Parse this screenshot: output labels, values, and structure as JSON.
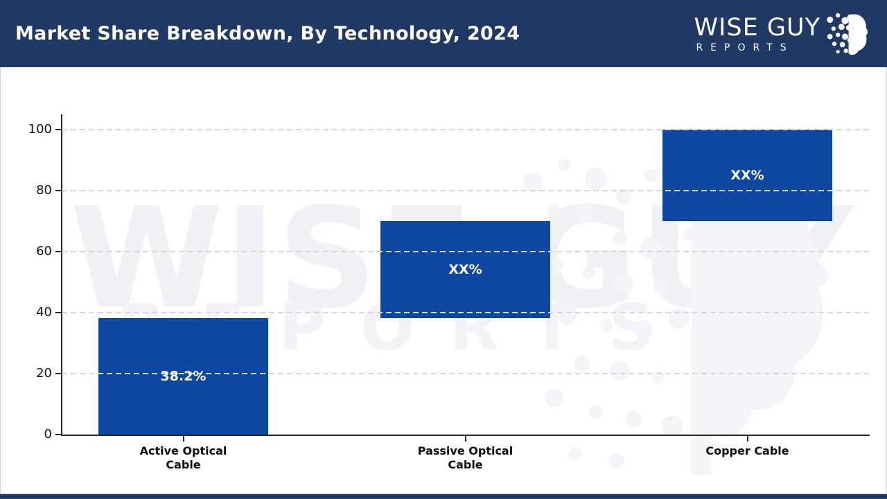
{
  "header": {
    "title": "Market Share Breakdown, By Technology, 2024",
    "logo": {
      "line1": "WISE GUY",
      "line2": "REPORTS"
    }
  },
  "watermark": {
    "line1": "WISE GUY",
    "line2": "REPORTS"
  },
  "colors": {
    "header_bg": "#1f3864",
    "footer_bg": "#1f3864",
    "bar": "#0d47a1",
    "bar_label": "#ffffff",
    "grid": "#d8d8d8",
    "axis": "#262626",
    "watermark": "#f2f4f7"
  },
  "chart_data": {
    "type": "bar",
    "subtype": "stacked-waterfall-segments",
    "title": "Market Share Breakdown, By Technology, 2024",
    "categories": [
      [
        "Active Optical",
        "Cable"
      ],
      [
        "Passive Optical",
        "Cable"
      ],
      [
        "Copper Cable"
      ]
    ],
    "segments": [
      {
        "name": "active-optical-cable",
        "start": 0,
        "end": 38.2,
        "label": "38.2%"
      },
      {
        "name": "passive-optical-cable",
        "start": 38.2,
        "end": 70,
        "label": "XX%"
      },
      {
        "name": "copper-cable",
        "start": 70,
        "end": 100,
        "label": "XX%"
      }
    ],
    "yticks": [
      0,
      20,
      40,
      60,
      80,
      100
    ],
    "ylim": [
      0,
      105
    ],
    "grid": "horizontal-dashed",
    "legend": "none",
    "xlabel": "",
    "ylabel": ""
  }
}
